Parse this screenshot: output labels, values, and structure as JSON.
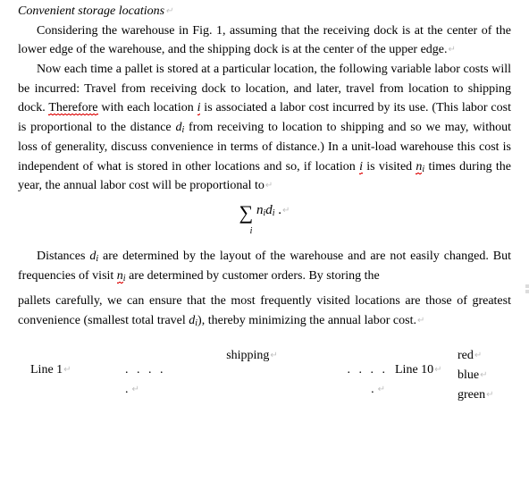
{
  "heading": "Convenient storage locations",
  "para1_a": "Considering the warehouse in Fig. 1, assuming that the receiving dock is at the center of the lower edge of the warehouse, and the shipping dock is at the center of the upper edge.",
  "para2_a": "Now each time a pallet is stored at a particular location, the following variable labor costs will be incurred: Travel from receiving dock to location, and later, travel from location to shipping dock. ",
  "para2_err": "Therefore",
  "para2_b": " with each location ",
  "para2_c": " is associated a labor cost incurred by its use. (This labor cost is proportional to the distance ",
  "para2_d": " from receiving to location to shipping and so we may, without loss of generality, discuss convenience in terms of distance.) In a unit-load warehouse this cost is independent of what is stored in other locations and so, if location ",
  "para2_e": " is visited ",
  "para2_f": " times during the year, the annual labor cost will be proportional to",
  "para3_a": "Distances ",
  "para3_b": " are determined by the layout of the warehouse and are not easily changed. But frequencies of visit ",
  "para3_c": " are determined by customer orders. By storing the ",
  "para4_a": "pallets carefully, we can ensure that the most frequently visited locations are those of greatest convenience (smallest total travel ",
  "para4_b": "), thereby minimizing the annual labor cost.",
  "var_i": "i",
  "var_d": "d",
  "var_n": "n",
  "footer": {
    "line1": "Line 1",
    "dots": ". . . . .",
    "shipping": "shipping",
    "line10": "Line 10",
    "colors": [
      "red",
      "blue",
      "green"
    ]
  },
  "colors": {
    "squiggle": "#d00",
    "pmark": "#c0c0c0"
  }
}
